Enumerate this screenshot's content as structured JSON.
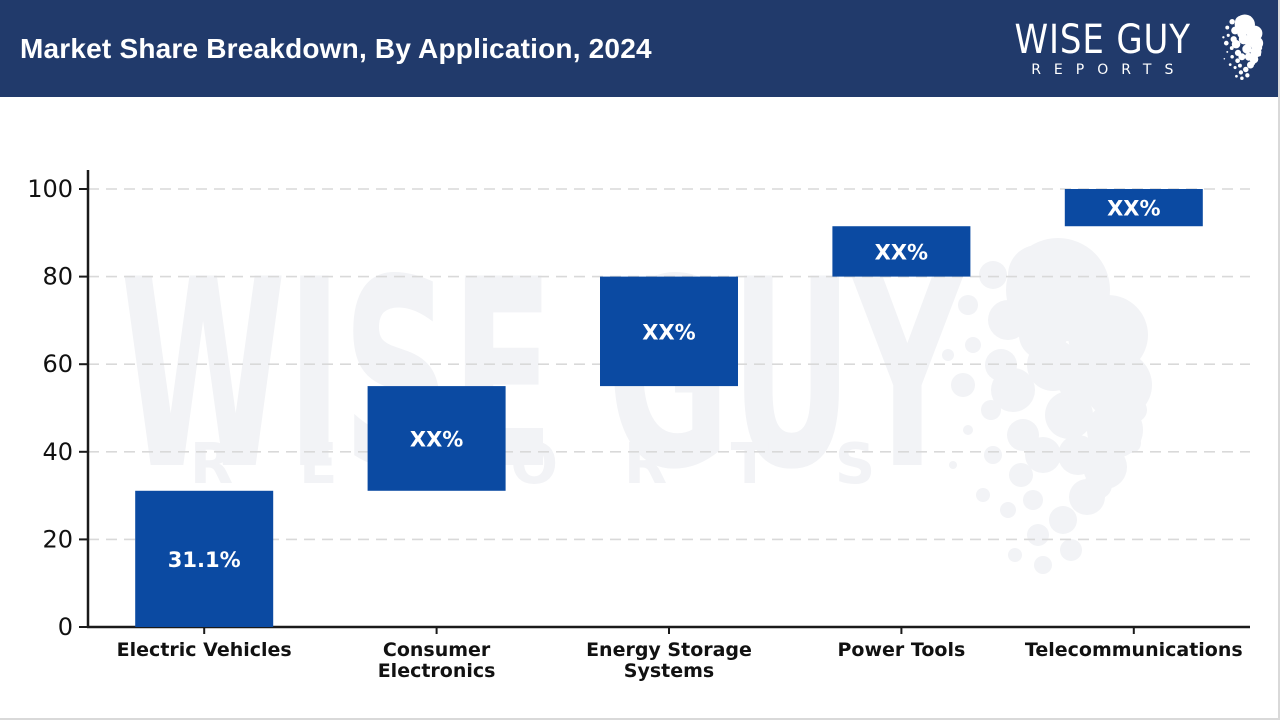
{
  "header": {
    "title": "Market Share Breakdown, By Application, 2024",
    "logo": {
      "line1": "WISE GUY",
      "line2": "REPORTS"
    }
  },
  "watermark": {
    "line1": "WISE GUY",
    "line2": "REPORTS"
  },
  "chart_data": {
    "type": "bar",
    "subtype": "floating cumulative segments (waterfall-style market share)",
    "title": "Market Share Breakdown, By Application, 2024",
    "categories": [
      "Electric Vehicles",
      "Consumer\nElectronics",
      "Energy Storage\nSystems",
      "Power Tools",
      "Telecommunications"
    ],
    "segments": [
      {
        "category": "Electric Vehicles",
        "start": 0,
        "end": 31.1,
        "value": 31.1,
        "label": "31.1%"
      },
      {
        "category": "Consumer Electronics",
        "start": 31.1,
        "end": 55,
        "value": 23.9,
        "label": "XX%"
      },
      {
        "category": "Energy Storage Systems",
        "start": 55,
        "end": 80,
        "value": 25,
        "label": "XX%"
      },
      {
        "category": "Power Tools",
        "start": 80,
        "end": 91.5,
        "value": 11.5,
        "label": "XX%"
      },
      {
        "category": "Telecommunications",
        "start": 91.5,
        "end": 100,
        "value": 8.5,
        "label": "XX%"
      }
    ],
    "xlabel": "",
    "ylabel": "",
    "yticks": [
      0,
      20,
      40,
      60,
      80,
      100
    ],
    "ylim": [
      0,
      104
    ],
    "grid": "horizontal dashed",
    "legend": "none",
    "bar_color": "#0b4aa2",
    "bar_label_color": "#ffffff",
    "axis_color": "#1a1a1a",
    "gridline_color": "#d9d9d9"
  },
  "colors": {
    "header_bg": "#213a6b",
    "page_bg": "#ffffff",
    "watermark": "#f2f3f6",
    "border": "#d9d9d9"
  }
}
